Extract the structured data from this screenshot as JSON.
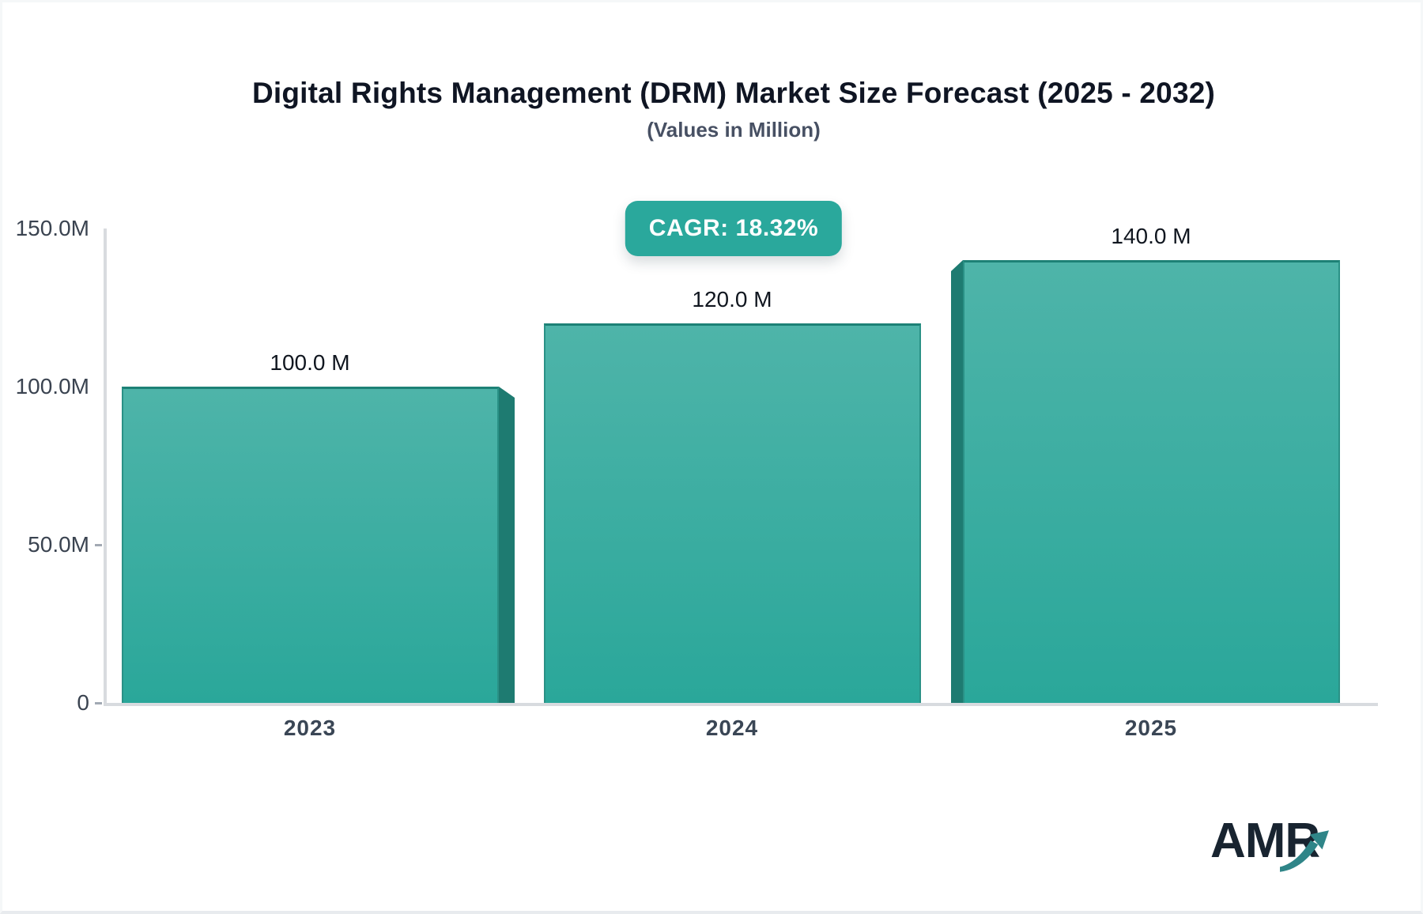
{
  "header": {
    "title": "Digital Rights Management (DRM) Market Size Forecast (2025 - 2032)",
    "subtitle": "(Values in Million)"
  },
  "cagr_badge": {
    "label": "CAGR: 18.32%"
  },
  "logo": {
    "text": "AMR",
    "arrow_icon": "growth-arrow-icon"
  },
  "colors": {
    "accent_teal": "#2aa89c",
    "bar_gradient_top": "#4eb4a9",
    "bar_gradient_bottom": "#2aa79a",
    "bar_side_face": "#1e7b71",
    "bar_top_border": "#1d8176",
    "axis_gray": "#d8dbdf",
    "title_text": "#0f1523",
    "subtitle_text": "#475063",
    "tick_text": "#3a4350",
    "logo_arrow_teal": "#2f8588"
  },
  "chart_data": {
    "type": "bar",
    "categories": [
      "2023",
      "2024",
      "2025"
    ],
    "values": [
      100.0,
      120.0,
      140.0
    ],
    "unit": "Million",
    "value_labels": [
      "100.0 M",
      "120.0 M",
      "140.0 M"
    ],
    "title": "Digital Rights Management (DRM) Market Size Forecast (2025 - 2032)",
    "subtitle": "(Values in Million)",
    "annotation": "CAGR: 18.32%",
    "xlabel": "",
    "ylabel": "",
    "ylim": [
      0,
      150
    ],
    "grid": false,
    "legend": false,
    "y_ticks": [
      {
        "label": "150.0M",
        "value": 150,
        "dash": false
      },
      {
        "label": "100.0M",
        "value": 100,
        "dash": false
      },
      {
        "label": "50.0M",
        "value": 50,
        "dash": true
      },
      {
        "label": "0",
        "value": 0,
        "dash": true
      }
    ]
  }
}
